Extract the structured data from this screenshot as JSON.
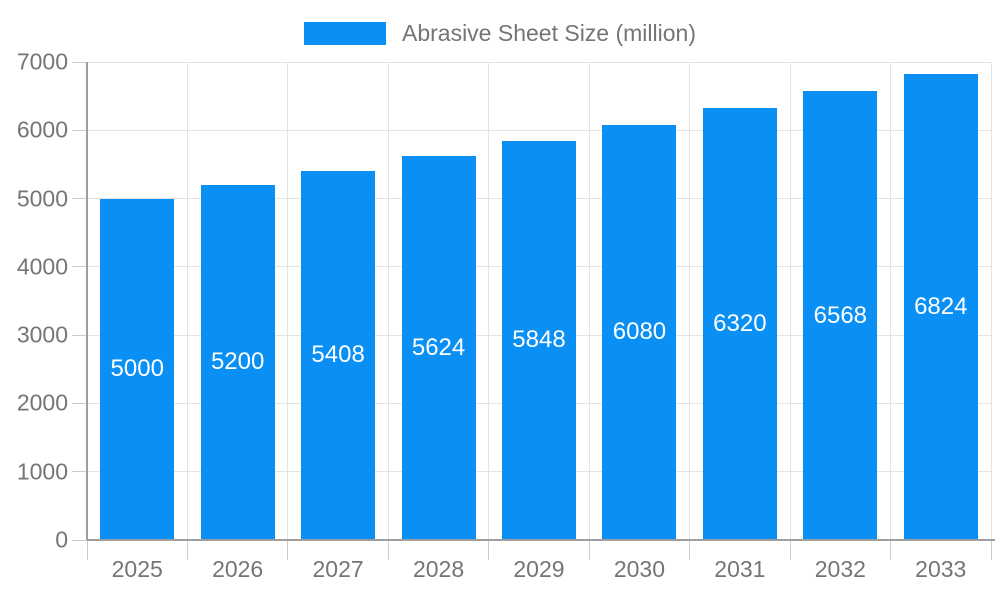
{
  "chart_data": {
    "type": "bar",
    "title": "",
    "legend": "Abrasive Sheet Size (million)",
    "legend_position": "top",
    "categories": [
      "2025",
      "2026",
      "2027",
      "2028",
      "2029",
      "2030",
      "2031",
      "2032",
      "2033"
    ],
    "values": [
      5000,
      5200,
      5408,
      5624,
      5848,
      6080,
      6320,
      6568,
      6824
    ],
    "xlabel": "",
    "ylabel": "",
    "ylim": [
      0,
      7000
    ],
    "yticks": [
      0,
      1000,
      2000,
      3000,
      4000,
      5000,
      6000,
      7000
    ],
    "grid": true,
    "value_labels": "inside-center",
    "colors": {
      "bar": "#0A8FF4",
      "value_label": "#ffffff",
      "axis_label": "#757575",
      "legend_text": "#757575",
      "gridline": "#e3e3e3",
      "axis_line": "#9e9e9e",
      "tick": "#cccccc",
      "background": "#ffffff"
    }
  }
}
